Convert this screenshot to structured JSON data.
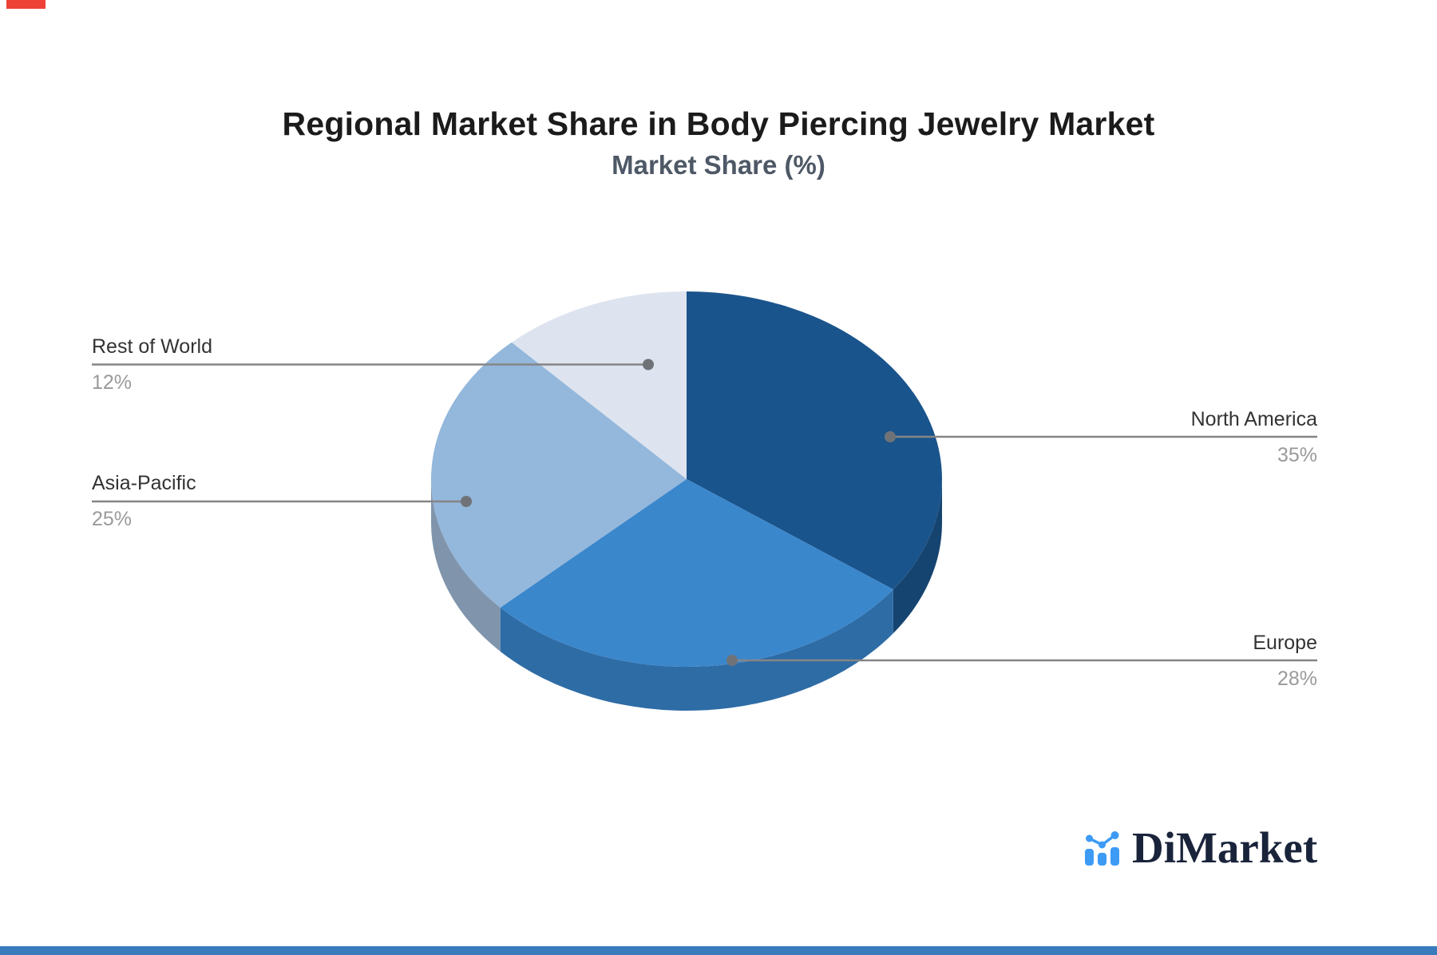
{
  "page": {
    "accent_bar_color": "#EE4236",
    "footer_bar_color": "#3A7BBE"
  },
  "header": {
    "title": "Regional Market Share in Body Piercing Jewelry Market",
    "subtitle": "Market Share (%)"
  },
  "chart_data": {
    "type": "pie",
    "style": "3d",
    "title": "Regional Market Share in Body Piercing Jewelry Market",
    "subtitle": "Market Share (%)",
    "unit": "%",
    "start_angle_deg": 0,
    "direction": "clockwise",
    "slices": [
      {
        "label": "North America",
        "value": 35,
        "display": "35%",
        "color": "#1A548C",
        "side_color": "#164470",
        "callout_side": "right"
      },
      {
        "label": "Europe",
        "value": 28,
        "display": "28%",
        "color": "#3B87CC",
        "side_color": "#2E6CA6",
        "callout_side": "right"
      },
      {
        "label": "Asia-Pacific",
        "value": 25,
        "display": "25%",
        "color": "#94B7DC",
        "side_color": "#8095AC",
        "callout_side": "left"
      },
      {
        "label": "Rest of World",
        "value": 12,
        "display": "12%",
        "color": "#DDE4EF",
        "side_color": "#B8C2D2",
        "callout_side": "left"
      }
    ],
    "label_text_color": "#333333",
    "value_text_color": "#9A9A9A",
    "leader_line_color": "#858585",
    "leader_dot_color": "#6F7377",
    "legend_position": "callout-labels"
  },
  "branding": {
    "logo_text": "DiMarket",
    "logo_icon": "bar-chart-trend-icon",
    "logo_text_color": "#19243B",
    "logo_icon_color": "#3D9BF5"
  }
}
